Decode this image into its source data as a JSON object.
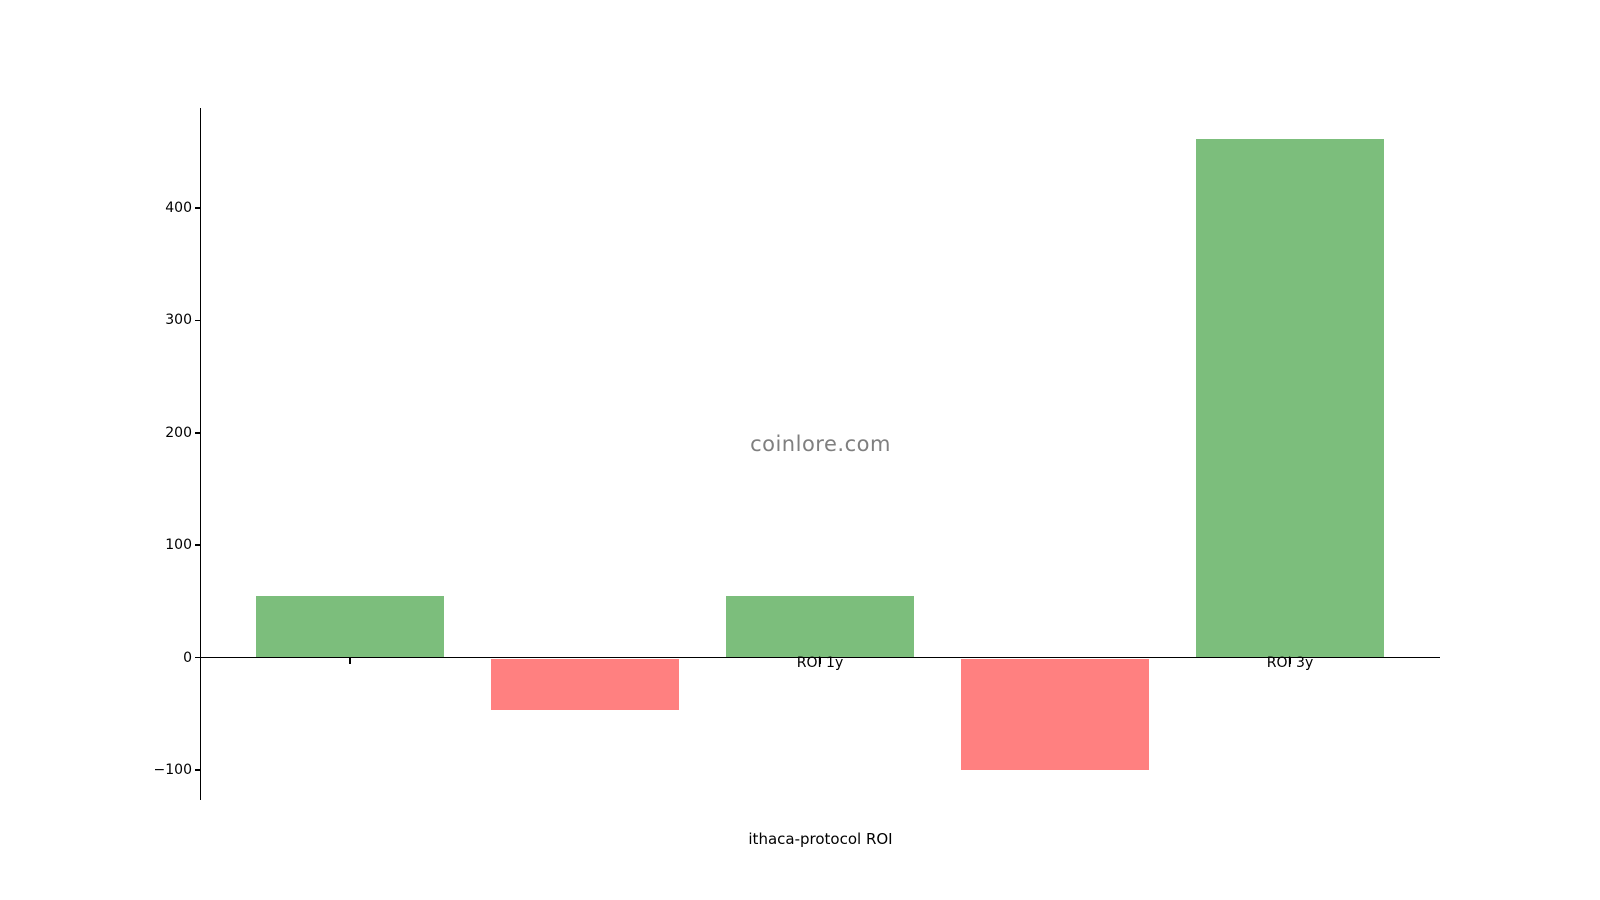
{
  "chart": {
    "title": "ithaca-protocol ROI",
    "watermark": "coinlore.com"
  },
  "chart_data": {
    "type": "bar",
    "title": "ithaca-protocol ROI",
    "watermark": "coinlore.com",
    "categories": [
      "",
      "",
      "ROI 1y",
      "",
      "ROI 3y"
    ],
    "values": [
      55,
      -45,
      55,
      -99,
      461
    ],
    "x_ticks": [
      {
        "index": 0,
        "label": ""
      },
      {
        "index": 2,
        "label": "ROI 1y"
      },
      {
        "index": 4,
        "label": "ROI 3y"
      }
    ],
    "yticks": [
      -100,
      0,
      100,
      200,
      300,
      400
    ],
    "ytick_labels": [
      "−100",
      "0",
      "100",
      "200",
      "300",
      "400"
    ],
    "ylim": [
      -127,
      489
    ],
    "grid": false,
    "legend": null,
    "positive_color": "#7cbe7c",
    "negative_color": "#ff8080",
    "axis_color": "#000000",
    "text_color": "#000000",
    "watermark_color": "#7f7f7f",
    "xlabel": "",
    "ylabel": ""
  }
}
